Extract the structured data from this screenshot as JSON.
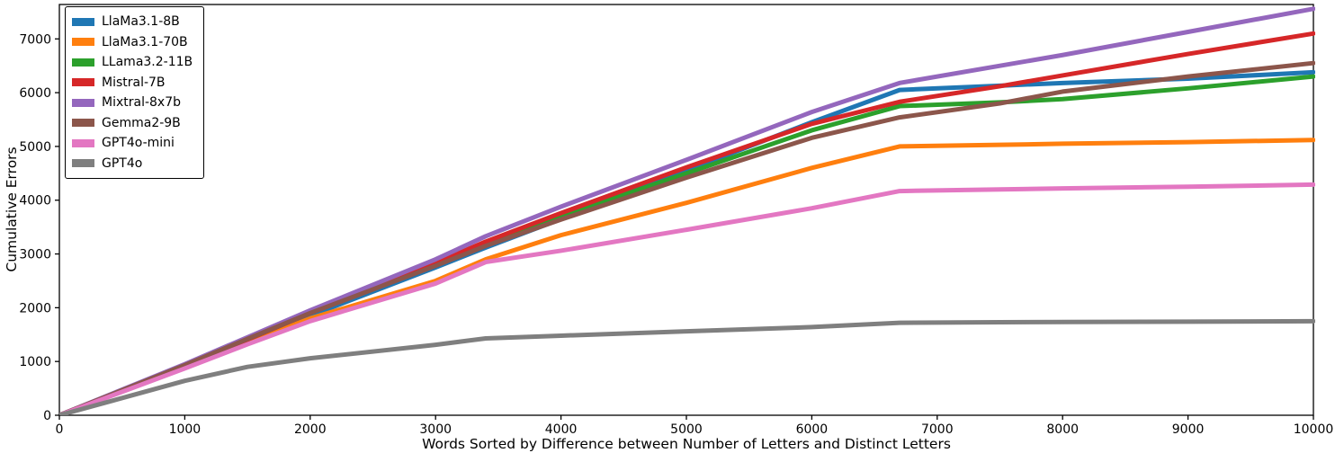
{
  "chart_data": {
    "type": "line",
    "title": "",
    "xlabel": "Words Sorted by Difference between Number of Letters and Distinct Letters",
    "ylabel": "Cumulative Errors",
    "xlim": [
      0,
      10000
    ],
    "ylim": [
      0,
      7640
    ],
    "x_ticks": [
      0,
      1000,
      2000,
      3000,
      4000,
      5000,
      6000,
      7000,
      8000,
      9000,
      10000
    ],
    "y_ticks": [
      0,
      1000,
      2000,
      3000,
      4000,
      5000,
      6000,
      7000
    ],
    "grid": false,
    "legend_position": "upper left",
    "line_width": 5,
    "x": [
      0,
      1000,
      1500,
      2000,
      3000,
      3400,
      4000,
      5000,
      6000,
      6700,
      7500,
      8000,
      9000,
      10000
    ],
    "series": [
      {
        "name": "LlaMa3.1-8B",
        "color": "#1f77b4",
        "values": [
          0,
          900,
          1380,
          1850,
          2750,
          3120,
          3650,
          4550,
          5450,
          6050,
          6130,
          6180,
          6260,
          6380
        ]
      },
      {
        "name": "LlaMa3.1-70B",
        "color": "#ff7f0e",
        "values": [
          0,
          900,
          1350,
          1800,
          2500,
          2900,
          3350,
          3950,
          4600,
          5000,
          5030,
          5050,
          5080,
          5120
        ]
      },
      {
        "name": "LLama3.2-11B",
        "color": "#2ca02c",
        "values": [
          0,
          920,
          1410,
          1900,
          2820,
          3200,
          3700,
          4500,
          5300,
          5750,
          5820,
          5880,
          6080,
          6300
        ]
      },
      {
        "name": "Mistral-7B",
        "color": "#d62728",
        "values": [
          0,
          920,
          1410,
          1900,
          2830,
          3230,
          3760,
          4610,
          5420,
          5830,
          6120,
          6320,
          6720,
          7100
        ]
      },
      {
        "name": "Mixtral-8x7b",
        "color": "#9467bd",
        "values": [
          0,
          950,
          1450,
          1950,
          2900,
          3330,
          3880,
          4750,
          5640,
          6180,
          6500,
          6700,
          7130,
          7560
        ]
      },
      {
        "name": "Gemma2-9B",
        "color": "#8c564b",
        "values": [
          0,
          930,
          1420,
          1900,
          2780,
          3150,
          3640,
          4420,
          5160,
          5540,
          5800,
          6020,
          6300,
          6550
        ]
      },
      {
        "name": "GPT4o-mini",
        "color": "#e377c2",
        "values": [
          0,
          870,
          1320,
          1750,
          2450,
          2850,
          3060,
          3450,
          3850,
          4170,
          4200,
          4220,
          4250,
          4290
        ]
      },
      {
        "name": "GPT4o",
        "color": "#7f7f7f",
        "values": [
          0,
          640,
          900,
          1060,
          1310,
          1430,
          1480,
          1560,
          1640,
          1720,
          1730,
          1735,
          1740,
          1750
        ]
      }
    ]
  }
}
